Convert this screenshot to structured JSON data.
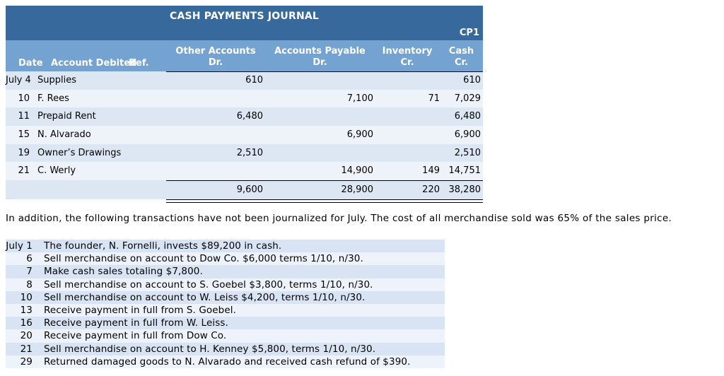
{
  "journal": {
    "title": "CASH PAYMENTS JOURNAL",
    "page_ref": "CP1",
    "columns": {
      "date": "Date",
      "account": "Account Debited",
      "ref": "Ref.",
      "other": {
        "line1": "Other Accounts",
        "line2": "Dr."
      },
      "ap": {
        "line1": "Accounts Payable",
        "line2": "Dr."
      },
      "inv": {
        "line1": "Inventory",
        "line2": "Cr."
      },
      "cash": {
        "line1": "Cash",
        "line2": "Cr."
      }
    },
    "rows": [
      {
        "date": "July 4",
        "account": "Supplies",
        "ref": "",
        "other": "610",
        "ap": "",
        "inv": "",
        "cash": "610"
      },
      {
        "date": "10",
        "account": "F. Rees",
        "ref": "",
        "other": "",
        "ap": "7,100",
        "inv": "71",
        "cash": "7,029"
      },
      {
        "date": "11",
        "account": "Prepaid Rent",
        "ref": "",
        "other": "6,480",
        "ap": "",
        "inv": "",
        "cash": "6,480"
      },
      {
        "date": "15",
        "account": "N. Alvarado",
        "ref": "",
        "other": "",
        "ap": "6,900",
        "inv": "",
        "cash": "6,900"
      },
      {
        "date": "19",
        "account": "Owner’s Drawings",
        "ref": "",
        "other": "2,510",
        "ap": "",
        "inv": "",
        "cash": "2,510"
      },
      {
        "date": "21",
        "account": "C. Werly",
        "ref": "",
        "other": "",
        "ap": "14,900",
        "inv": "149",
        "cash": "14,751"
      }
    ],
    "totals": {
      "other": "9,600",
      "ap": "28,900",
      "inv": "220",
      "cash": "38,280"
    }
  },
  "intro": "In addition, the following transactions have not been journalized for July. The cost of all merchandise sold was 65% of the sales price.",
  "transactions": [
    {
      "date": "July 1",
      "text": "The founder, N. Fornelli, invests $89,200 in cash."
    },
    {
      "date": "6",
      "text": "Sell merchandise on account to Dow Co. $6,000 terms 1/10, n/30."
    },
    {
      "date": "7",
      "text": "Make cash sales totaling $7,800."
    },
    {
      "date": "8",
      "text": "Sell merchandise on account to S. Goebel $3,800, terms 1/10, n/30."
    },
    {
      "date": "10",
      "text": "Sell merchandise on account to W. Leiss $4,200, terms 1/10, n/30."
    },
    {
      "date": "13",
      "text": "Receive payment in full from S. Goebel."
    },
    {
      "date": "16",
      "text": "Receive payment in full from W. Leiss."
    },
    {
      "date": "20",
      "text": "Receive payment in full from Dow Co."
    },
    {
      "date": "21",
      "text": "Sell merchandise on account to H. Kenney $5,800, terms 1/10, n/30."
    },
    {
      "date": "29",
      "text": "Returned damaged goods to N. Alvarado and received cash refund of $390."
    }
  ],
  "colors": {
    "header_dark_blue": "#38699c",
    "header_light_blue": "#74a3d2",
    "row_blue": "#dce7f3",
    "row_light": "#eef3fa",
    "txn_row_blue": "#d8e4f4",
    "txn_row_light": "#eef3fb",
    "header_text": "#ffffff",
    "body_text": "#000000",
    "rule_line": "#000000"
  }
}
